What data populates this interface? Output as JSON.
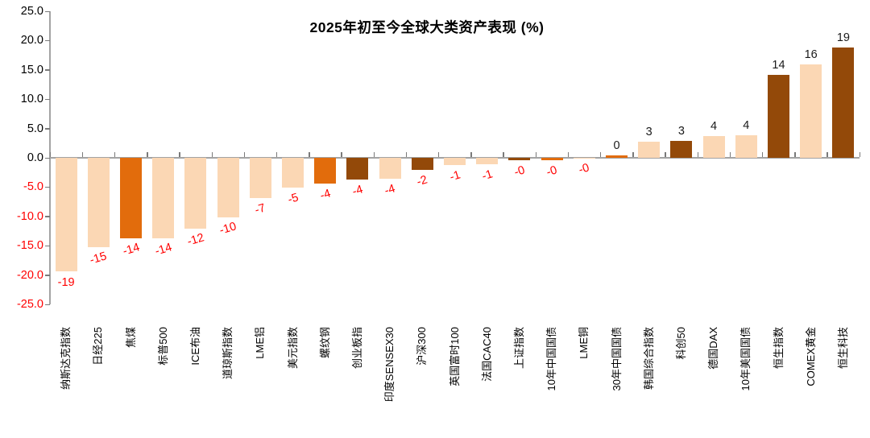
{
  "chart_data": {
    "type": "bar",
    "title": "2025年初至今全球大类资产表现 (%)",
    "categories": [
      "纳斯达克指数",
      "日经225",
      "焦煤",
      "标普500",
      "ICE布油",
      "道琼斯指数",
      "LME铝",
      "美元指数",
      "螺纹钢",
      "创业板指",
      "印度SENSEX30",
      "沪深300",
      "英国富时100",
      "法国CAC40",
      "上证指数",
      "10年中国国债",
      "LME铜",
      "30年中国国债",
      "韩国综合指数",
      "科创50",
      "德国DAX",
      "10年美国国债",
      "恒生指数",
      "COMEX黄金",
      "恒生科技"
    ],
    "values": [
      -19.3,
      -15.2,
      -13.8,
      -13.8,
      -12.1,
      -10.2,
      -6.8,
      -5.1,
      -4.4,
      -3.7,
      -3.6,
      -2.1,
      -1.2,
      -1.1,
      -0.35,
      -0.35,
      -0.05,
      0.45,
      2.8,
      2.9,
      3.7,
      3.9,
      14.1,
      15.9,
      18.8
    ],
    "value_labels": [
      "-19",
      "-15",
      "-14",
      "-14",
      "-12",
      "-10",
      "-7",
      "-5",
      "-4",
      "-4",
      "-4",
      "-2",
      "-1",
      "-1",
      "-0",
      "-0",
      "-0",
      "0",
      "3",
      "3",
      "4",
      "4",
      "14",
      "16",
      "19"
    ],
    "bar_colors": [
      "light",
      "light",
      "orange",
      "light",
      "light",
      "light",
      "light",
      "light",
      "orange",
      "dark",
      "light",
      "dark",
      "light",
      "light",
      "dark",
      "orange",
      "light",
      "orange",
      "light",
      "dark",
      "light",
      "light",
      "dark",
      "light",
      "dark"
    ],
    "palette": {
      "light": "#fbd7b4",
      "orange": "#e26c0c",
      "dark": "#934909"
    },
    "y_axis": {
      "min": -25,
      "max": 25,
      "step": 5,
      "tick_labels": [
        "25.0",
        "20.0",
        "15.0",
        "10.0",
        "5.0",
        "0.0",
        "-5.0",
        "-10.0",
        "-15.0",
        "-20.0",
        "-25.0"
      ],
      "positive_label_color": "#000000",
      "negative_label_color": "#ff0000"
    },
    "data_label_colors": {
      "positive": "#1a1a1a",
      "negative": "#ff0000"
    },
    "grid": false,
    "legend": null
  }
}
